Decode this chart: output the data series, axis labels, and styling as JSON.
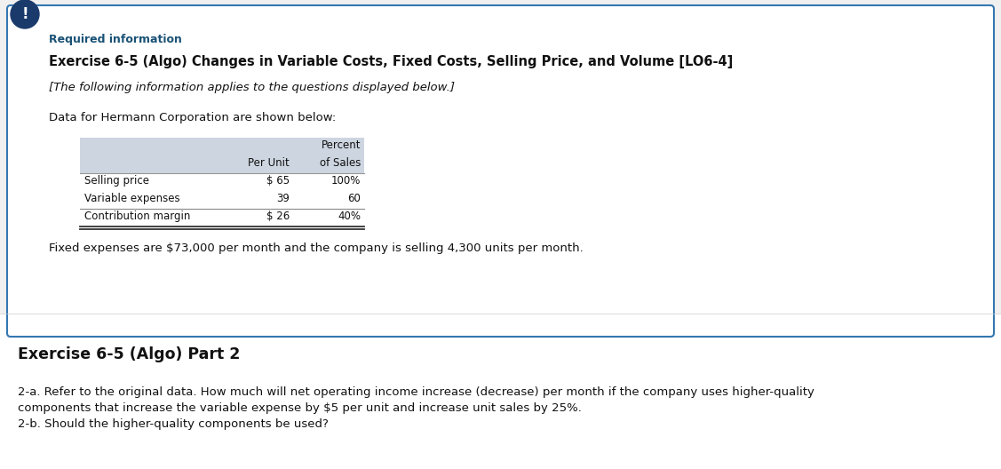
{
  "required_info_label": "Required information",
  "title": "Exercise 6-5 (Algo) Changes in Variable Costs, Fixed Costs, Selling Price, and Volume [LO6-4]",
  "subtitle": "[The following information applies to the questions displayed below.]",
  "intro_text": "Data for Hermann Corporation are shown below:",
  "table_rows": [
    [
      "Selling price",
      "$ 65",
      "100%"
    ],
    [
      "Variable expenses",
      "39",
      "60"
    ],
    [
      "Contribution margin",
      "$ 26",
      "40%"
    ]
  ],
  "fixed_expenses_text": "Fixed expenses are $73,000 per month and the company is selling 4,300 units per month.",
  "part2_title": "Exercise 6-5 (Algo) Part 2",
  "question_2a": "2-a. Refer to the original data. How much will net operating income increase (decrease) per month if the company uses higher-quality\ncomponents that increase the variable expense by $5 per unit and increase unit sales by 25%.\n2-b. Should the higher-quality components be used?",
  "required_info_color": "#1a5276",
  "box_border_color": "#3477b0",
  "box_bg_color": "#ffffff",
  "table_header_bg": "#cdd5e0",
  "icon_bg_color": "#1a3a6b",
  "fig_bg_color": "#f0f0f0",
  "bottom_bg_color": "#ffffff"
}
